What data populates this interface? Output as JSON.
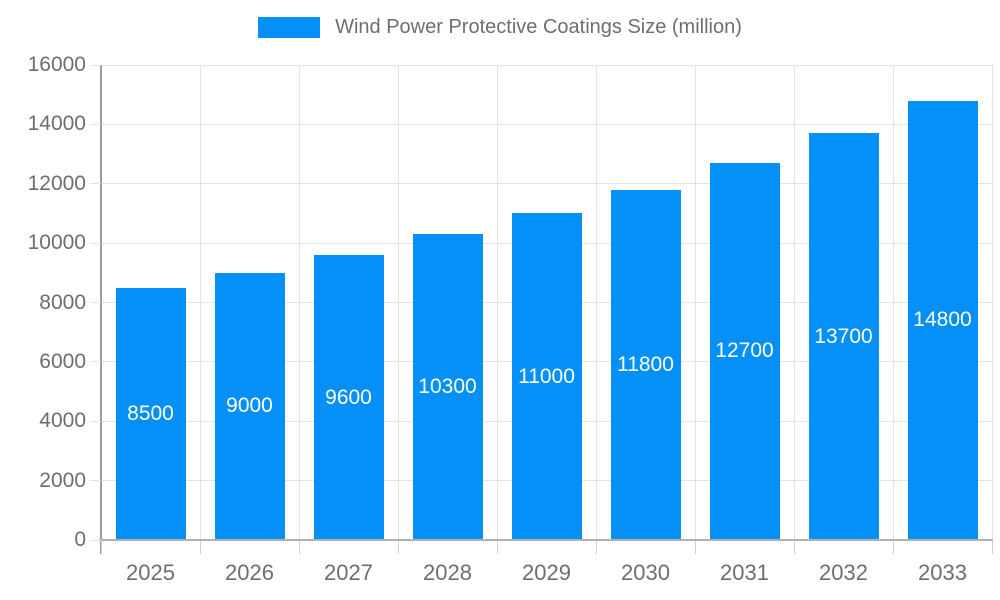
{
  "legend": {
    "label": "Wind Power Protective Coatings Size (million)"
  },
  "colors": {
    "bar": "#0590f8",
    "grid": "#e4e4e4",
    "tick": "#d0d0d0",
    "axis_text": "#6e6e6e",
    "bar_label_text": "#ffffff"
  },
  "chart_data": {
    "type": "bar",
    "title": "Wind Power Protective Coatings Size (million)",
    "categories": [
      "2025",
      "2026",
      "2027",
      "2028",
      "2029",
      "2030",
      "2031",
      "2032",
      "2033"
    ],
    "values": [
      8500,
      9000,
      9600,
      10300,
      11000,
      11800,
      12700,
      13700,
      14800
    ],
    "series_name": "Wind Power Protective Coatings Size (million)",
    "xlabel": "",
    "ylabel": "",
    "ylim": [
      0,
      16000
    ],
    "ytick_step": 2000,
    "ytick_labels": [
      "0",
      "2000",
      "4000",
      "6000",
      "8000",
      "10000",
      "12000",
      "14000",
      "16000"
    ],
    "grid": true,
    "legend_position": "top",
    "bar_label_position": "inside-center"
  }
}
